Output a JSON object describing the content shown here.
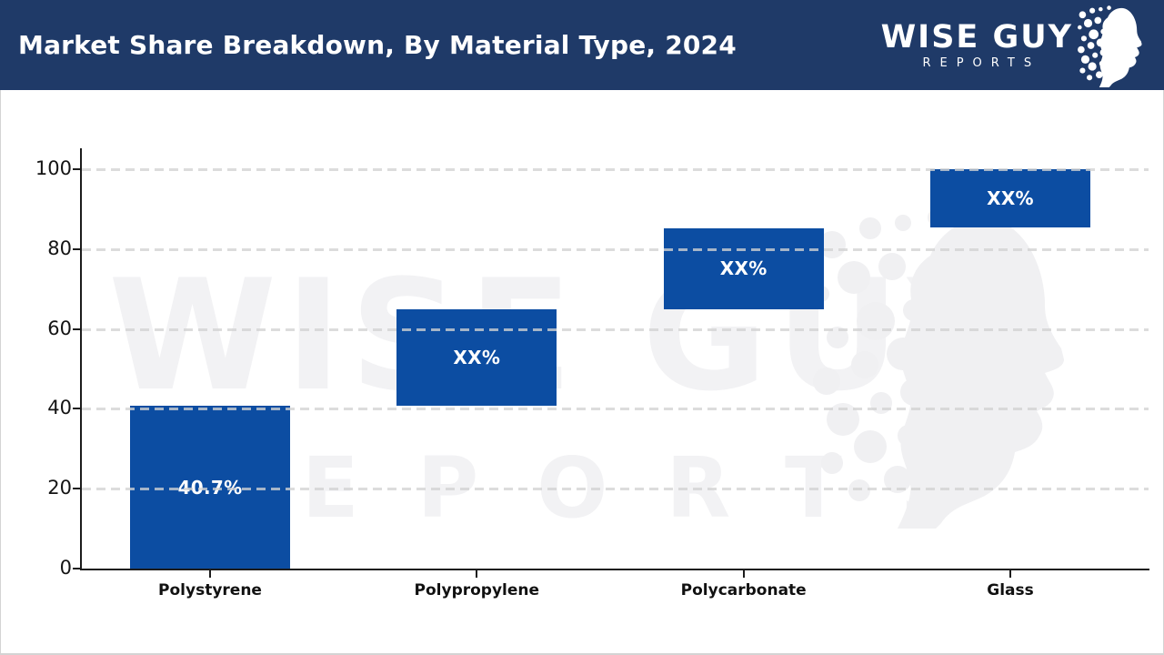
{
  "header": {
    "title": "Market Share Breakdown, By Material Type, 2024",
    "logo": {
      "line1": "WISE GUY",
      "line2": "REPORTS"
    }
  },
  "watermark": {
    "line1": "WISE GUY",
    "line2": "REPORTS"
  },
  "colors": {
    "header_bg": "#1f3a68",
    "bar_fill": "#0c4da2",
    "bar_label": "#ffffff",
    "gridline": "#d7d7d7",
    "axis": "#1c1c1c",
    "watermark": "#f2f2f4"
  },
  "chart_data": {
    "type": "bar",
    "subtype": "waterfall",
    "title": "Market Share Breakdown, By Material Type, 2024",
    "xlabel": "",
    "ylabel": "",
    "categories": [
      "Polystyrene",
      "Polypropylene",
      "Polycarbonate",
      "Glass"
    ],
    "bars": [
      {
        "category": "Polystyrene",
        "start": 0,
        "end": 40.7,
        "label": "40.7%"
      },
      {
        "category": "Polypropylene",
        "start": 40.7,
        "end": 65,
        "label": "XX%"
      },
      {
        "category": "Polycarbonate",
        "start": 65,
        "end": 85.2,
        "label": "XX%"
      },
      {
        "category": "Glass",
        "start": 85.5,
        "end": 100,
        "label": "XX%"
      }
    ],
    "ylim": [
      0,
      105
    ],
    "yticks": [
      0,
      20,
      40,
      60,
      80,
      100
    ],
    "grid": "horizontal dashed, drawn above bars",
    "legend": "none"
  }
}
